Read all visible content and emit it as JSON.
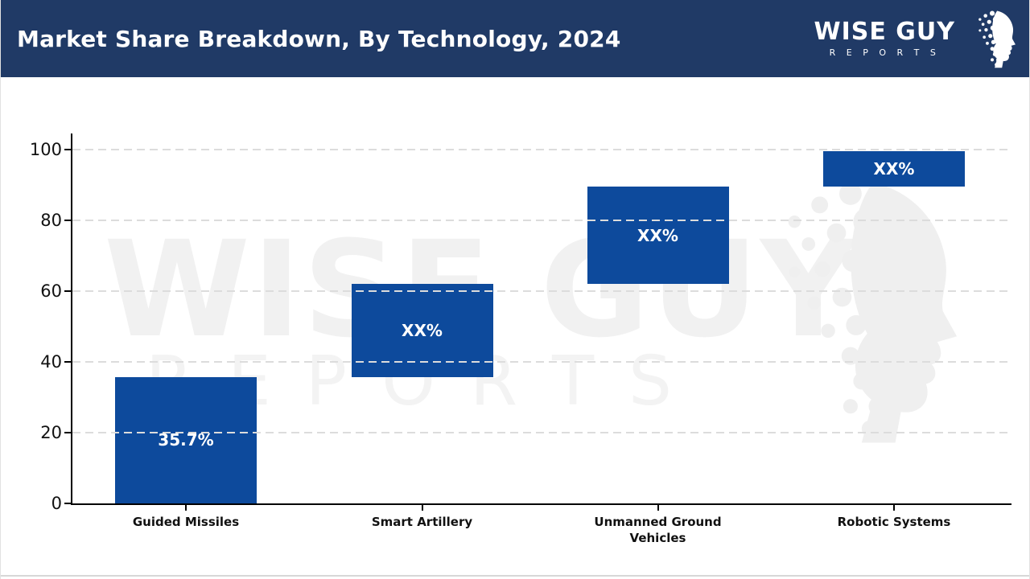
{
  "header": {
    "title": "Market Share Breakdown, By Technology, 2024",
    "logo": {
      "wordmark": "WISE GUY",
      "subtitle": "R E P O R T S"
    }
  },
  "watermark": {
    "wordmark": "WISE GUY",
    "subtitle": "R E P O R T S"
  },
  "chart_data": {
    "type": "bar",
    "variant": "floating-waterfall",
    "title": "Market Share Breakdown, By Technology, 2024",
    "categories": [
      "Guided Missiles",
      "Smart Artillery",
      "Unmanned Ground Vehicles",
      "Robotic Systems"
    ],
    "bars": [
      {
        "category": "Guided Missiles",
        "start": 0,
        "end": 35.7,
        "value": 35.7,
        "label": "35.7%"
      },
      {
        "category": "Smart Artillery",
        "start": 35.7,
        "end": 62.0,
        "value": 26.3,
        "label": "XX%"
      },
      {
        "category": "Unmanned Ground Vehicles",
        "start": 62.0,
        "end": 89.5,
        "value": 27.5,
        "label": "XX%"
      },
      {
        "category": "Robotic Systems",
        "start": 89.5,
        "end": 99.6,
        "value": 10.1,
        "label": "XX%"
      }
    ],
    "xlabel": "",
    "ylabel": "",
    "ylim": [
      0,
      100
    ],
    "yticks": [
      0,
      20,
      40,
      60,
      80,
      100
    ],
    "grid": "horizontal-dashed",
    "legend": "none",
    "bar_color": "#0d4a9c",
    "bar_label_color": "#ffffff"
  },
  "colors": {
    "header_bg": "#203a66",
    "bar": "#0d4a9c",
    "axis": "#000000",
    "gridline": "#dcdcdc",
    "watermark": "#f1f1f1",
    "text": "#111111"
  }
}
